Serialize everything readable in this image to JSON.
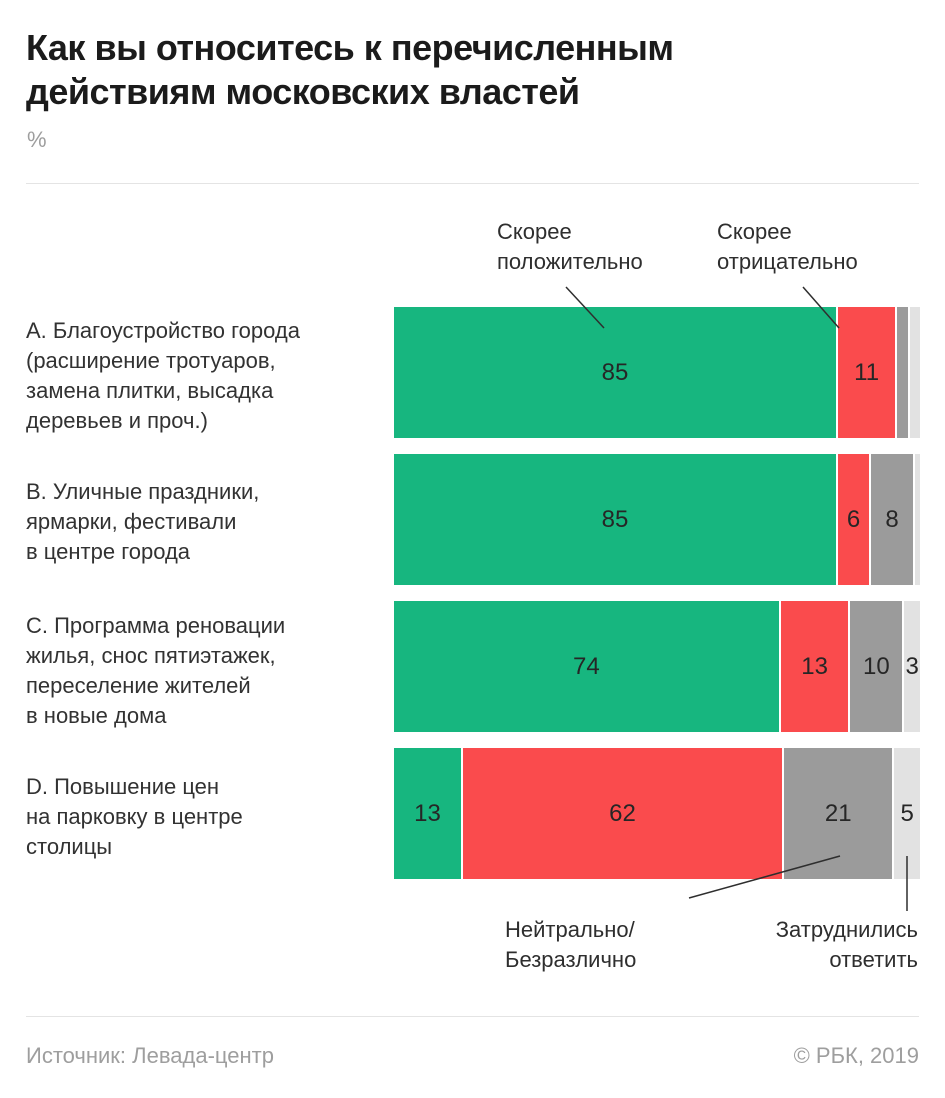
{
  "page": {
    "title": "Как вы относитесь к перечисленным\nдействиям московских властей",
    "unit_label": "%",
    "source": "Источник: Левада-центр",
    "copyright": "© РБК, 2019"
  },
  "annotations": {
    "positive": "Скорее\nположительно",
    "negative": "Скорее\nотрицательно",
    "neutral": "Нейтрально/\nБезразлично",
    "undecided": "Затруднились\nответить"
  },
  "colors": {
    "positive": "#17b67f",
    "negative": "#fa4b4d",
    "neutral": "#9b9b9b",
    "undecided": "#e2e2e2",
    "title_text": "#1b1b1b",
    "body_text": "#323232",
    "muted_text": "#9e9e9e",
    "divider": "#e4e4e4"
  },
  "chart_data": {
    "type": "bar",
    "orientation": "horizontal",
    "stacked": true,
    "unit": "%",
    "xlim": [
      0,
      100
    ],
    "grid": false,
    "title": "Как вы относитесь к перечисленным действиям московских властей",
    "categories": [
      "A. Благоустройство города\n(расширение тротуаров,\nзамена плитки, высадка\nдеревьев и проч.)",
      "B. Уличные праздники,\nярмарки, фестивали\nв центре города",
      "C. Программа реновации\nжилья, снос пятиэтажек,\nпереселение жителей\nв новые дома",
      "D. Повышение цен\nна парковку в центре\nстолицы"
    ],
    "series": [
      {
        "name": "Скорее положительно",
        "color": "#17b67f",
        "values": [
          85,
          85,
          74,
          13
        ]
      },
      {
        "name": "Скорее отрицательно",
        "color": "#fa4b4d",
        "values": [
          11,
          6,
          13,
          62
        ]
      },
      {
        "name": "Нейтрально/Безразлично",
        "color": "#9b9b9b",
        "values": [
          2,
          8,
          10,
          21
        ]
      },
      {
        "name": "Затруднились ответить",
        "color": "#e2e2e2",
        "values": [
          2,
          1,
          3,
          5
        ]
      }
    ],
    "value_labels_shown": [
      [
        "85",
        "11",
        "",
        ""
      ],
      [
        "85",
        "6",
        "8",
        ""
      ],
      [
        "74",
        "13",
        "10",
        "3"
      ],
      [
        "13",
        "62",
        "21",
        "5"
      ]
    ]
  }
}
